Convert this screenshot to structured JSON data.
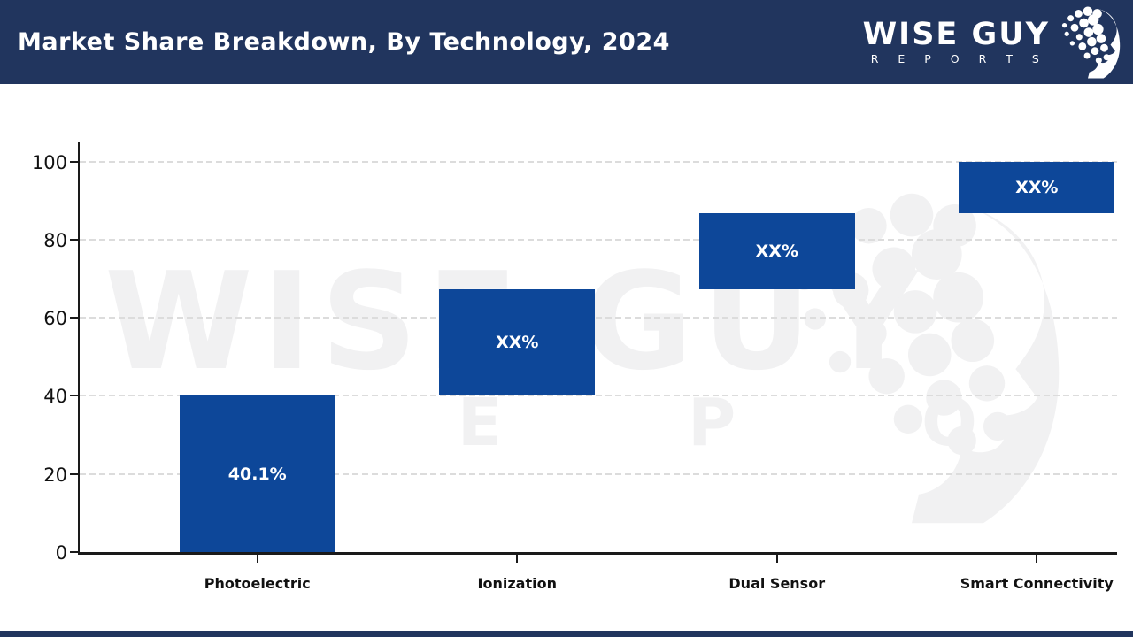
{
  "header": {
    "title": "Market Share Breakdown, By Technology, 2024",
    "logo": {
      "brand_line1": "WISE GUY",
      "brand_line2": "R E P O R T S"
    }
  },
  "watermark": {
    "line1": "WISE GUY",
    "line2": "R E P O R T S"
  },
  "colors": {
    "header_bg": "#21355e",
    "footer_bg": "#21355e",
    "bar": "#0d4799",
    "bar_label": "#ffffff",
    "axis": "#1a1a1a",
    "grid": "#dcdcdc",
    "tick_label": "#111111",
    "watermark": "#f1f1f2"
  },
  "chart_data": {
    "type": "bar",
    "subtype": "waterfall",
    "title": "Market Share Breakdown, By Technology, 2024",
    "categories": [
      "Photoelectric",
      "Ionization",
      "Dual Sensor",
      "Smart Connectivity"
    ],
    "segments": [
      {
        "category": "Photoelectric",
        "start": 0,
        "end": 40.1,
        "label": "40.1%"
      },
      {
        "category": "Ionization",
        "start": 40.1,
        "end": 67.3,
        "label": "XX%"
      },
      {
        "category": "Dual Sensor",
        "start": 67.3,
        "end": 86.7,
        "label": "XX%"
      },
      {
        "category": "Smart Connectivity",
        "start": 86.7,
        "end": 100,
        "label": "XX%"
      }
    ],
    "yticks": [
      0,
      20,
      40,
      60,
      80,
      100
    ],
    "ylim": [
      0,
      105.8
    ],
    "xlabel": "",
    "ylabel": "",
    "grid": "horizontal-dashed",
    "legend": "none",
    "bar_color": "#0d4799",
    "bar_label_color": "#ffffff"
  }
}
